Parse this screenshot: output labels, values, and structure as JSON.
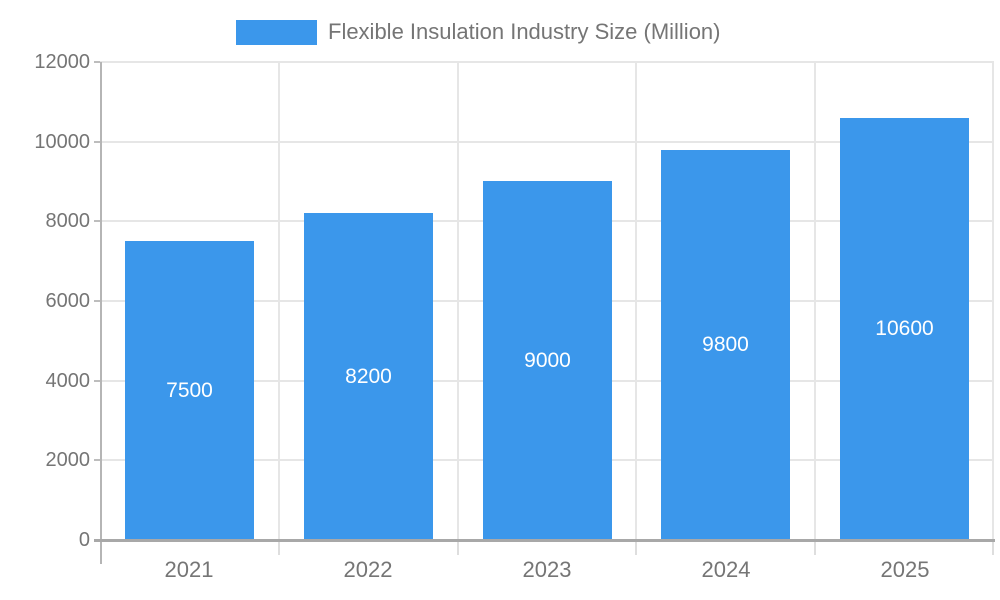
{
  "chart_data": {
    "type": "bar",
    "title": "Flexible Insulation Industry Size (Million)",
    "categories": [
      "2021",
      "2022",
      "2023",
      "2024",
      "2025"
    ],
    "values": [
      7500,
      8200,
      9000,
      9800,
      10600
    ],
    "xlabel": "",
    "ylabel": "",
    "ylim": [
      0,
      12000
    ],
    "ytick_step": 2000,
    "grid": true,
    "legend_position": "top-center",
    "bar_color": "#3B97EB",
    "value_label_color": "#FFFFFF",
    "axis_text_color": "#757575",
    "gridline_color": "#E6E6E6",
    "axis_line_color": "#A8A8A8",
    "bar_width_fraction": 0.72
  }
}
